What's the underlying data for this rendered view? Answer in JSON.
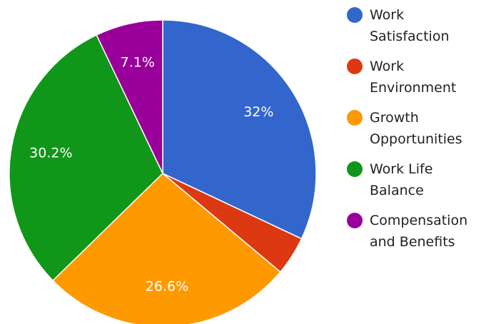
{
  "chart_data": {
    "type": "pie",
    "categories": [
      "Work Satisfaction",
      "Work Environment",
      "Growth Opportunities",
      "Work Life Balance",
      "Compensation and Benefits"
    ],
    "values": [
      32,
      4.1,
      26.6,
      30.2,
      7.1
    ],
    "value_labels": [
      "32%",
      null,
      "26.6%",
      "30.2%",
      "7.1%"
    ],
    "colors": [
      "#3366cc",
      "#dc3912",
      "#ff9900",
      "#109618",
      "#990099"
    ],
    "legend": "right"
  }
}
